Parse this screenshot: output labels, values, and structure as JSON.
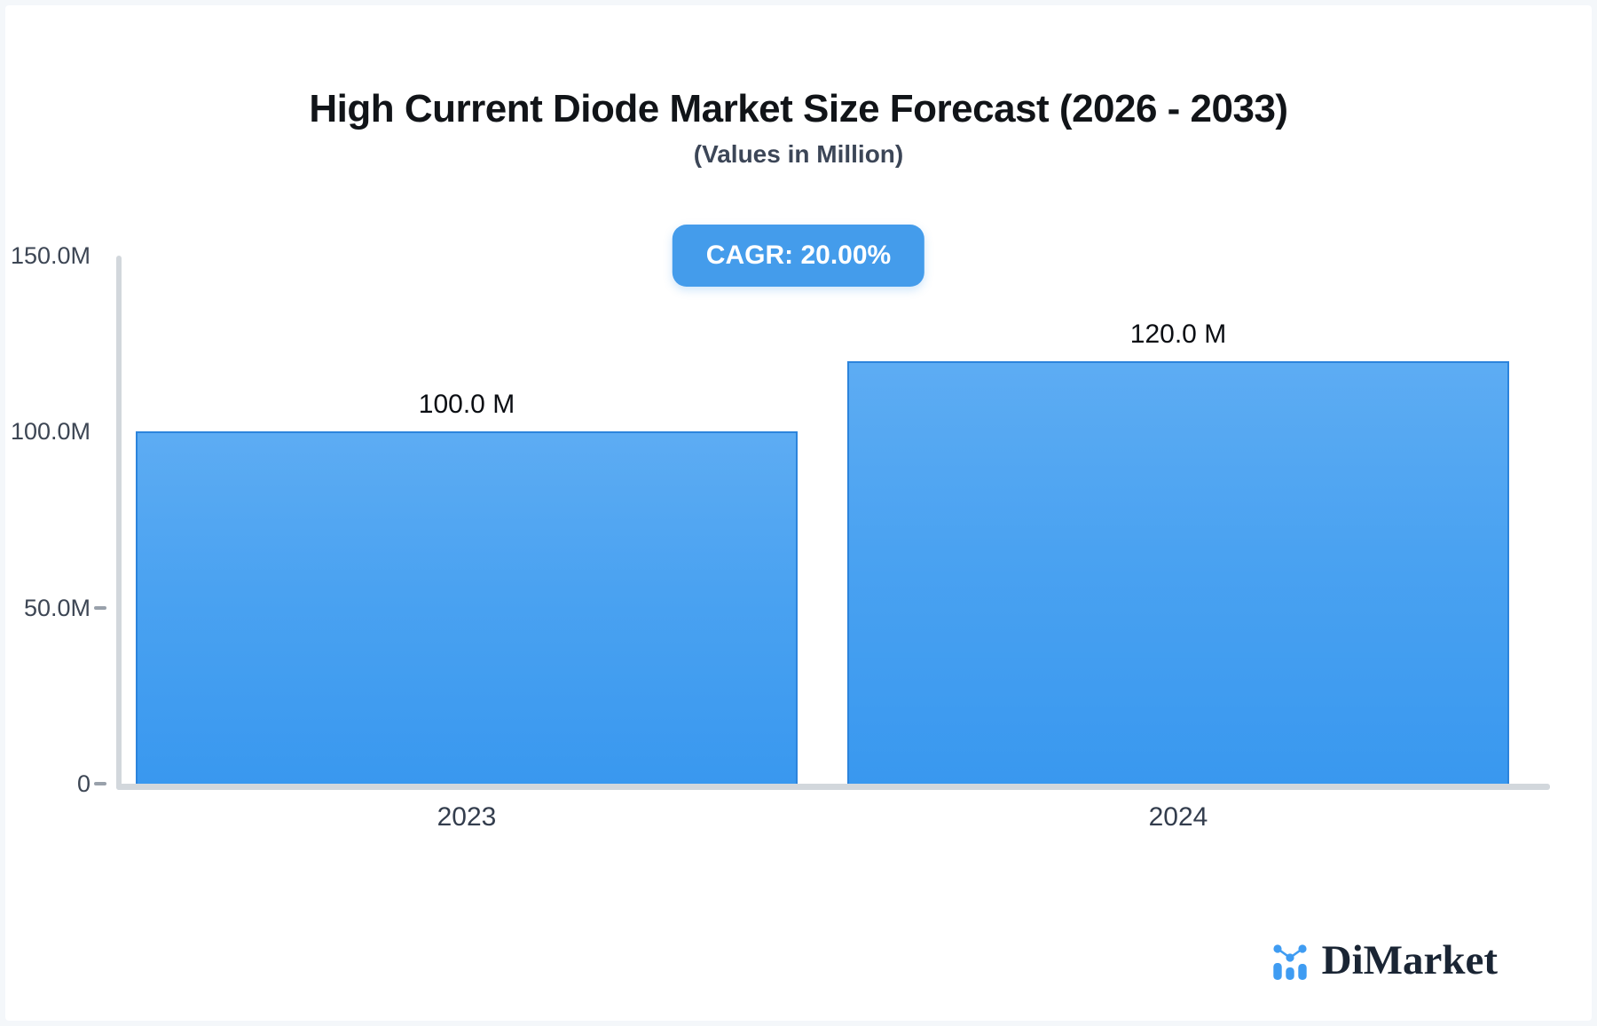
{
  "title": "High Current Diode Market Size Forecast (2026 - 2033)",
  "subtitle": "(Values in Million)",
  "cagr_badge": "CAGR: 20.00%",
  "brand": {
    "name": "DiMarket",
    "icon": "bar-chart-logo-icon"
  },
  "colors": {
    "badge_bg": "#449ceb",
    "bar_top": "#5dacf3",
    "bar_bottom": "#3998ef",
    "bar_border": "#2c84dc",
    "axis_line": "#d2d7dc",
    "brand_blue": "#3f9cf2",
    "brand_navy": "#1a2534",
    "page_bg": "#f4f7fa"
  },
  "chart_data": {
    "type": "bar",
    "title": "High Current Diode Market Size Forecast (2026 - 2033)",
    "subtitle": "(Values in Million)",
    "unit": "Million",
    "categories": [
      "2023",
      "2024"
    ],
    "values": [
      100.0,
      120.0
    ],
    "value_labels": [
      "100.0 M",
      "120.0 M"
    ],
    "cagr_percent": 20.0,
    "ylim": [
      0,
      150
    ],
    "yticks": [
      {
        "value": 0,
        "label": "0",
        "tick": true
      },
      {
        "value": 50,
        "label": "50.0M",
        "tick": true
      },
      {
        "value": 100,
        "label": "100.0M",
        "tick": false
      },
      {
        "value": 150,
        "label": "150.0M",
        "tick": false
      }
    ],
    "grid": false,
    "legend": false,
    "xlabel": "",
    "ylabel": ""
  }
}
